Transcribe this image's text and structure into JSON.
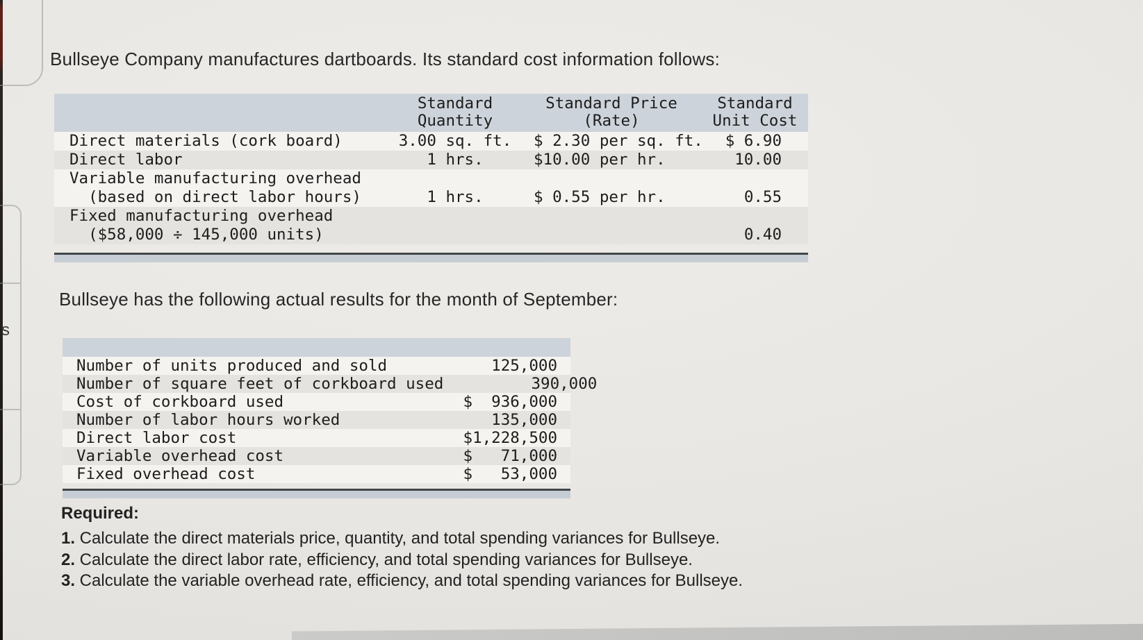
{
  "page": {
    "title": "Bullseye Company manufactures dartboards. Its standard cost information follows:",
    "intro2": "Bullseye has the following actual results for the month of September:",
    "side_letter": "s"
  },
  "standard_table": {
    "headers": {
      "qty_line1": "Standard",
      "qty_line2": "Quantity",
      "price_line1": "Standard Price",
      "price_line2": "(Rate)",
      "cost_line1": "Standard",
      "cost_line2": "Unit Cost"
    },
    "rows": [
      {
        "label": "Direct materials (cork board)",
        "qty": "3.00 sq. ft.",
        "rate": "$ 2.30 per sq. ft.",
        "cost": "$ 6.90"
      },
      {
        "label": "Direct labor",
        "qty": "1 hrs.",
        "rate": "$10.00 per hr.",
        "cost": "10.00"
      },
      {
        "label": "Variable manufacturing overhead",
        "qty": "",
        "rate": "",
        "cost": ""
      },
      {
        "label": "  (based on direct labor hours)",
        "qty": "1 hrs.",
        "rate": "$ 0.55 per hr.",
        "cost": "0.55"
      },
      {
        "label": "Fixed manufacturing overhead",
        "qty": "",
        "rate": "",
        "cost": ""
      },
      {
        "label": "  ($58,000 ÷ 145,000 units)",
        "qty": "",
        "rate": "",
        "cost": "0.40"
      }
    ]
  },
  "actuals_table": {
    "rows": [
      {
        "label": "Number of units produced and sold",
        "amount": "125,000"
      },
      {
        "label": "Number of square feet of corkboard used",
        "amount": "390,000"
      },
      {
        "label": "Cost of corkboard used",
        "amount": "$  936,000"
      },
      {
        "label": "Number of labor hours worked",
        "amount": "135,000"
      },
      {
        "label": "Direct labor cost",
        "amount": "$1,228,500"
      },
      {
        "label": "Variable overhead cost",
        "amount": "$   71,000"
      },
      {
        "label": "Fixed overhead cost",
        "amount": "$   53,000"
      }
    ]
  },
  "required": {
    "heading": "Required:",
    "items": [
      {
        "num": "1.",
        "text": " Calculate the direct materials price, quantity, and total spending variances for Bullseye."
      },
      {
        "num": "2.",
        "text": " Calculate the direct labor rate, efficiency, and total spending variances for Bullseye."
      },
      {
        "num": "3.",
        "text": " Calculate the variable overhead rate, efficiency, and total spending variances for Bullseye."
      }
    ]
  },
  "colors": {
    "table_header_bg": "#cdd3da",
    "row_shade_bg": "#e5e3df",
    "row_plain_bg": "#f5f3ef",
    "table_border_dark": "#42464a",
    "table_bar_bg": "#c7cdd5",
    "left_edge_red": "#5e1d17"
  }
}
